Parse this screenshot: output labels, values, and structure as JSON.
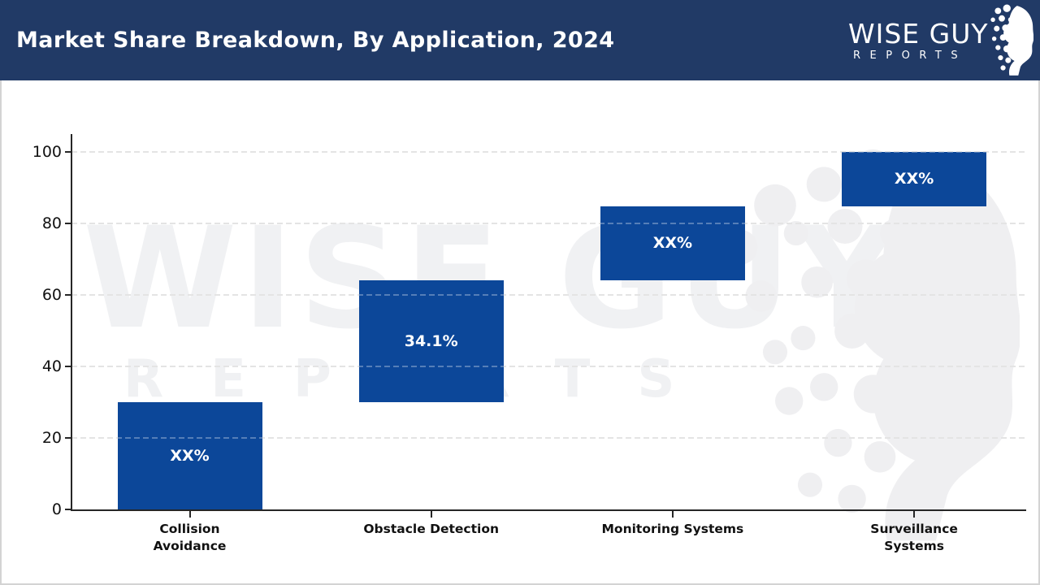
{
  "header": {
    "title": "Market Share Breakdown, By Application, 2024",
    "logo": {
      "line1": "WISE GUY",
      "line2": "REPORTS"
    }
  },
  "watermark": {
    "line1": "WISE GUY",
    "line2": "REPORTS"
  },
  "colors": {
    "header_bg": "#213a66",
    "bar_fill": "#0c4799",
    "bar_label_text": "#ffffff",
    "gridline": "#d9d9d9",
    "axis": "#262626",
    "watermark_gray": "#f0f1f3"
  },
  "chart_data": {
    "type": "bar",
    "subtype": "floating-waterfall",
    "title": "Market Share Breakdown, By Application, 2024",
    "categories": [
      "Collision Avoidance",
      "Obstacle Detection",
      "Monitoring Systems",
      "Surveillance Systems"
    ],
    "categories_display": [
      "Collision\nAvoidance",
      "Obstacle Detection",
      "Monitoring Systems",
      "Surveillance\nSystems"
    ],
    "bars": [
      {
        "category": "Collision Avoidance",
        "start": 0,
        "end": 30,
        "label": "XX%"
      },
      {
        "category": "Obstacle Detection",
        "start": 30,
        "end": 64.1,
        "label": "34.1%"
      },
      {
        "category": "Monitoring Systems",
        "start": 64.1,
        "end": 84.8,
        "label": "XX%"
      },
      {
        "category": "Surveillance Systems",
        "start": 84.8,
        "end": 100,
        "label": "XX%"
      }
    ],
    "ylim": [
      0,
      100
    ],
    "yticks": [
      0,
      20,
      40,
      60,
      80,
      100
    ],
    "ytick_labels": [
      "0",
      "20",
      "40",
      "60",
      "80",
      "100"
    ],
    "grid": "horizontal-dashed",
    "legend": false
  }
}
